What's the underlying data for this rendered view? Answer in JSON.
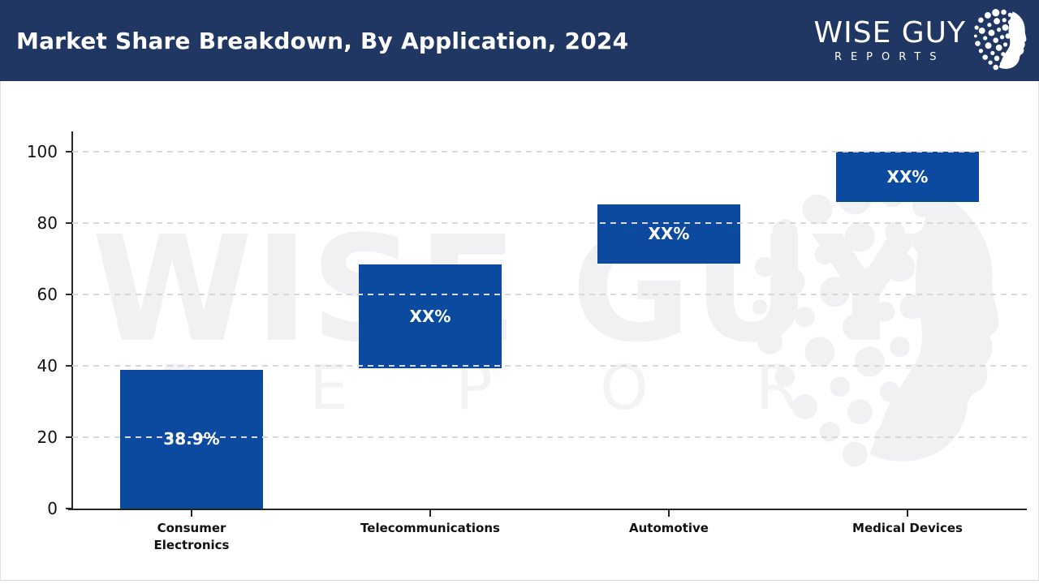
{
  "header": {
    "title": "Market Share Breakdown, By Application, 2024",
    "logo": {
      "name": "WISE GUY",
      "subtitle": "REPORTS"
    }
  },
  "watermark": {
    "line1": "WISE GUY",
    "line2": "R E P O R T S"
  },
  "chart_data": {
    "type": "bar",
    "variant": "stacked-waterfall-segments",
    "title": "Market Share Breakdown, By Application, 2024",
    "xlabel": "",
    "ylabel": "",
    "ylim": [
      0,
      100
    ],
    "yticks": [
      0,
      20,
      40,
      60,
      80,
      100
    ],
    "grid": {
      "axis": "y",
      "style": "dashed",
      "color": "#d8d8d8"
    },
    "legend": "none",
    "categories": [
      [
        "Consumer",
        "Electronics"
      ],
      [
        "Telecommunications"
      ],
      [
        "Automotive"
      ],
      [
        "Medical Devices"
      ]
    ],
    "bars": [
      {
        "category": "Consumer Electronics",
        "start": 0,
        "end": 38.9,
        "label": "38.9%"
      },
      {
        "category": "Telecommunications",
        "start": 39.3,
        "end": 68.3,
        "label": "XX%"
      },
      {
        "category": "Automotive",
        "start": 68.7,
        "end": 85.3,
        "label": "XX%"
      },
      {
        "category": "Medical Devices",
        "start": 85.8,
        "end": 100,
        "label": "XX%"
      }
    ],
    "colors": {
      "bar": "#0b4a9e",
      "bar_label": "#ffffff",
      "axis": "#262626",
      "tick_label": "#111111",
      "header_background": "#203763",
      "watermark": "#f1f1f4"
    }
  }
}
